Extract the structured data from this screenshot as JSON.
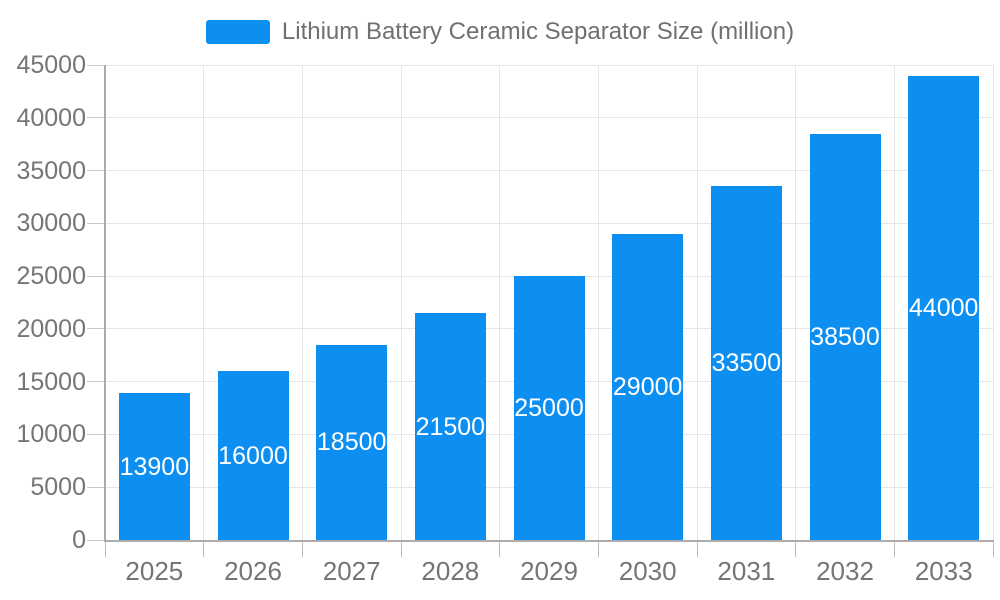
{
  "legend": {
    "label": "Lithium Battery Ceramic Separator Size (million)"
  },
  "chart_data": {
    "type": "bar",
    "title": "Lithium Battery Ceramic Separator Size (million)",
    "categories": [
      "2025",
      "2026",
      "2027",
      "2028",
      "2029",
      "2030",
      "2031",
      "2032",
      "2033"
    ],
    "values": [
      13900,
      16000,
      18500,
      21500,
      25000,
      29000,
      33500,
      38500,
      44000
    ],
    "value_labels": [
      "13900",
      "16000",
      "18500",
      "21500",
      "25000",
      "29000",
      "33500",
      "38500",
      "44000"
    ],
    "xlabel": "",
    "ylabel": "",
    "ylim": [
      0,
      45000
    ],
    "ytick_step": 5000,
    "yticks": [
      0,
      5000,
      10000,
      15000,
      20000,
      25000,
      30000,
      35000,
      40000,
      45000
    ],
    "grid": true,
    "legend_position": "top-center",
    "bar_color": "#0D8FF2",
    "value_label_color": "#FFFFFF",
    "axis_text_color": "#757575",
    "gridline_color": "#E6E6E6",
    "axis_line_color": "#ABABAB",
    "background_color": "#FFFFFF"
  }
}
